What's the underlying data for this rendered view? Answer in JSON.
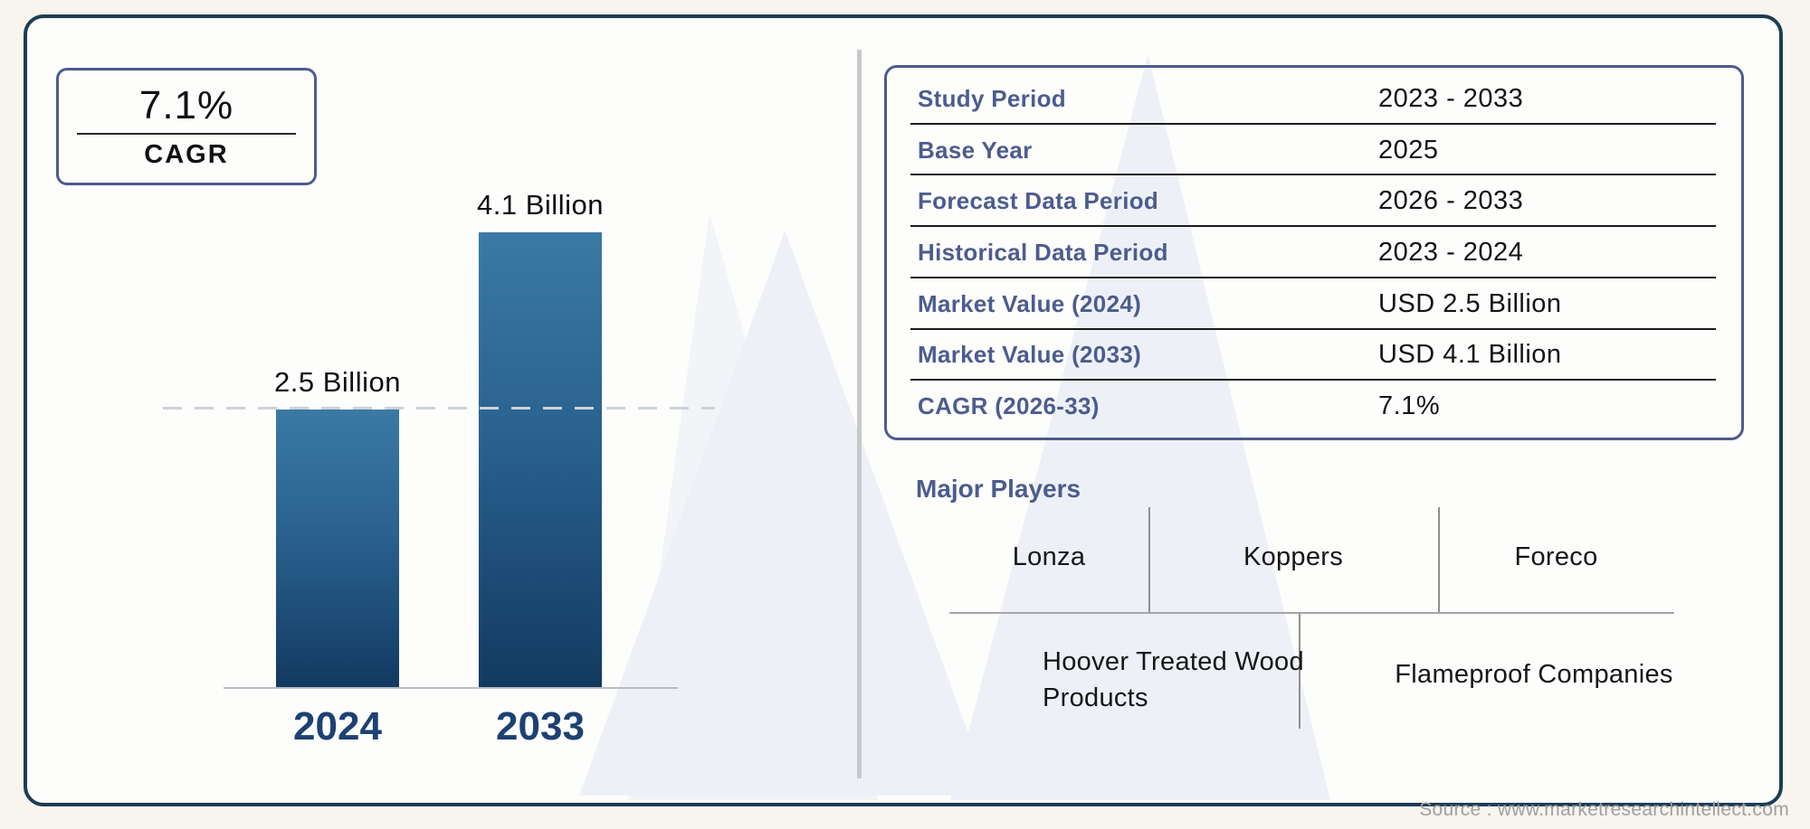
{
  "cagr_box": {
    "value": "7.1%",
    "label": "CAGR"
  },
  "chart_data": {
    "type": "bar",
    "categories": [
      "2024",
      "2033"
    ],
    "values": [
      2.5,
      4.1
    ],
    "value_labels": [
      "2.5 Billion",
      "4.1 Billion"
    ],
    "unit": "USD Billion",
    "title": "",
    "xlabel": "",
    "ylabel": "",
    "ylim": [
      0,
      4.1
    ],
    "grid": false,
    "legend": false,
    "reference_line_at": 2.5,
    "bar_color_top": "#3a7aa5",
    "bar_color_bottom": "#123a61"
  },
  "info_table": {
    "rows": [
      {
        "label": "Study Period",
        "value": "2023 - 2033"
      },
      {
        "label": "Base Year",
        "value": "2025"
      },
      {
        "label": "Forecast Data Period",
        "value": "2026 - 2033"
      },
      {
        "label": "Historical Data Period",
        "value": "2023 - 2024"
      },
      {
        "label": "Market Value (2024)",
        "value": "USD 2.5 Billion"
      },
      {
        "label": "Market Value (2033)",
        "value": "USD 4.1 Billion"
      },
      {
        "label": "CAGR (2026-33)",
        "value": "7.1%"
      }
    ]
  },
  "major_players": {
    "title": "Major Players",
    "items": [
      "Lonza",
      "Koppers",
      "Foreco",
      "Hoover Treated Wood Products",
      "Flameproof Companies"
    ]
  },
  "source": {
    "text": "Source : www.marketresearchintellect.com"
  },
  "colors": {
    "outer_border": "#1e3c55",
    "accent_slate": "#4d5c8e",
    "year_label": "#1c4173",
    "divider_gray": "#c9c9c9",
    "watermark": "#edf1f7",
    "source_text": "#a0a0a0"
  }
}
